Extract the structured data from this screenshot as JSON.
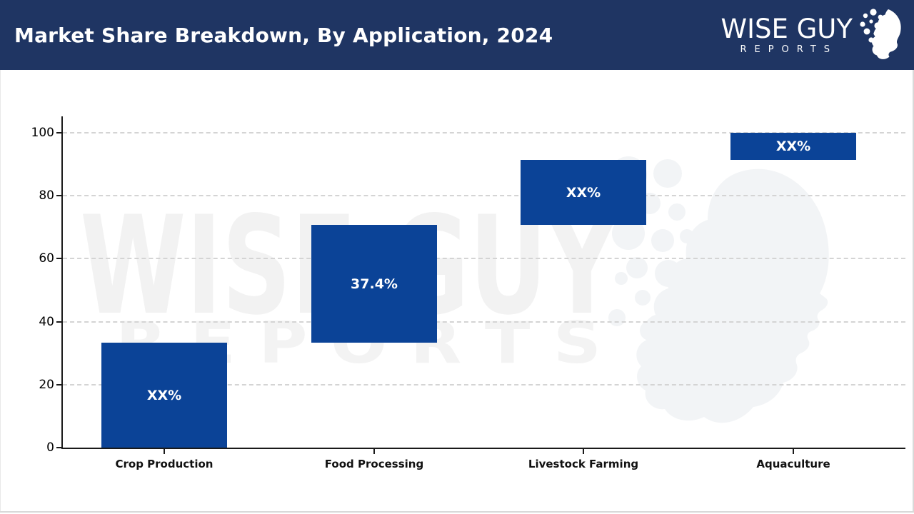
{
  "header": {
    "title": "Market Share Breakdown, By Application, 2024",
    "logo": {
      "line1": "WISE GUY",
      "line2": "REPORTS"
    }
  },
  "watermark": {
    "line1": "WISE GUY",
    "line2": "R E P O R T S"
  },
  "chart_data": {
    "type": "bar",
    "variant": "floating-waterfall",
    "title": "Market Share Breakdown, By Application, 2024",
    "categories": [
      "Crop Production",
      "Food Processing",
      "Livestock Farming",
      "Aquaculture"
    ],
    "series": [
      {
        "name": "Market Share (%)",
        "segments": [
          {
            "category": "Crop Production",
            "start": 0,
            "end": 33.3,
            "label": "XX%"
          },
          {
            "category": "Food Processing",
            "start": 33.3,
            "end": 70.7,
            "label": "37.4%"
          },
          {
            "category": "Livestock Farming",
            "start": 70.7,
            "end": 91.3,
            "label": "XX%"
          },
          {
            "category": "Aquaculture",
            "start": 91.3,
            "end": 100,
            "label": "XX%"
          }
        ]
      }
    ],
    "xlabel": "",
    "ylabel": "",
    "ylim": [
      0,
      100
    ],
    "yticks": [
      0,
      20,
      40,
      60,
      80,
      100
    ],
    "grid": true,
    "legend": false,
    "colors": {
      "bar": "#0b4397",
      "header_bg": "#1f3563",
      "grid": "#d4d4d4",
      "axis": "#1a1a1a",
      "bar_label": "#ffffff",
      "watermark": "#f2f2f2"
    }
  }
}
